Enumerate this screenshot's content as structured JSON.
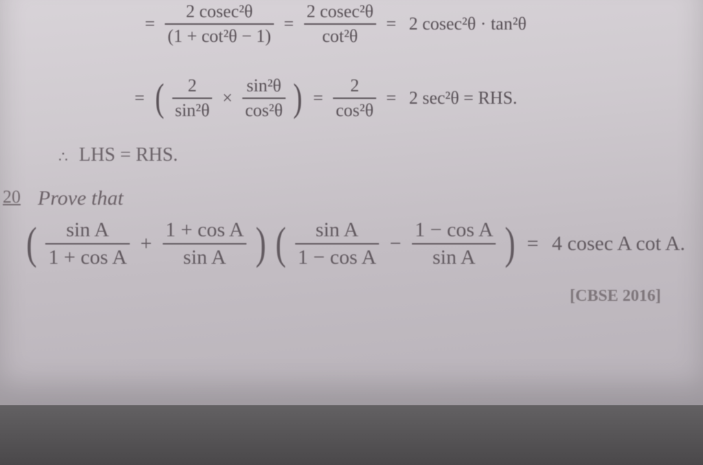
{
  "colors": {
    "text_main": "#5a5258",
    "text_soft": "#6a6268",
    "text_dark": "#625a60",
    "bg_top": "#d8d3d8",
    "bg_bottom": "#b8b2b9"
  },
  "line1": {
    "eq0": "=",
    "f1n": "2 cosec²θ",
    "f1d": "(1 + cot²θ − 1)",
    "eq1": "=",
    "f2n": "2 cosec²θ",
    "f2d": "cot²θ",
    "eq2": "=",
    "tail": "2 cosec²θ · tan²θ"
  },
  "line2": {
    "eq0": "=",
    "f1n": "2",
    "f1d": "sin²θ",
    "times": "×",
    "f2n": "sin²θ",
    "f2d": "cos²θ",
    "eq1": "=",
    "f3n": "2",
    "f3d": "cos²θ",
    "eq2": "=",
    "tail": "2 sec²θ = RHS."
  },
  "therefore": "∴",
  "lhs_line": "LHS = RHS.",
  "qnum": "20",
  "prove": "Prove that",
  "line3": {
    "f1n": "sin A",
    "f1d": "1 + cos A",
    "plus": "+",
    "f2n": "1 + cos A",
    "f2d": "sin A",
    "f3n": "sin A",
    "f3d": "1 − cos A",
    "minus": "−",
    "f4n": "1 − cos A",
    "f4d": "sin A",
    "eq": "=",
    "rhs": "4 cosec A cot A."
  },
  "cbse": "[CBSE 2016]"
}
